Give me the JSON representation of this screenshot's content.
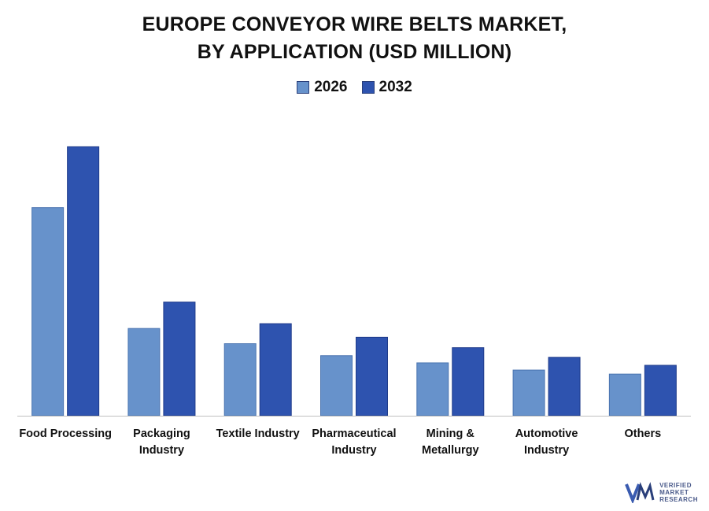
{
  "chart_data": {
    "type": "bar",
    "title_lines": [
      "EUROPE CONVEYOR WIRE BELTS MARKET,",
      "BY APPLICATION (USD MILLION)"
    ],
    "categories": [
      [
        "Food Processing"
      ],
      [
        "Packaging",
        "Industry"
      ],
      [
        "Textile Industry"
      ],
      [
        "Pharmaceutical",
        "Industry"
      ],
      [
        "Mining &",
        "Metallurgy"
      ],
      [
        "Automotive",
        "Industry"
      ],
      [
        "Others"
      ]
    ],
    "series": [
      {
        "name": "2026",
        "color": "#6792cb",
        "values": [
          260,
          109,
          90,
          75,
          66,
          57,
          52
        ]
      },
      {
        "name": "2032",
        "color": "#2e53af",
        "values": [
          336,
          142,
          115,
          98,
          85,
          73,
          63
        ]
      }
    ],
    "ylim": [
      0,
      360
    ],
    "grid": false,
    "legend_position": "top-center"
  },
  "logo": {
    "lines": [
      "VERIFIED",
      "MARKET",
      "RESEARCH"
    ]
  }
}
